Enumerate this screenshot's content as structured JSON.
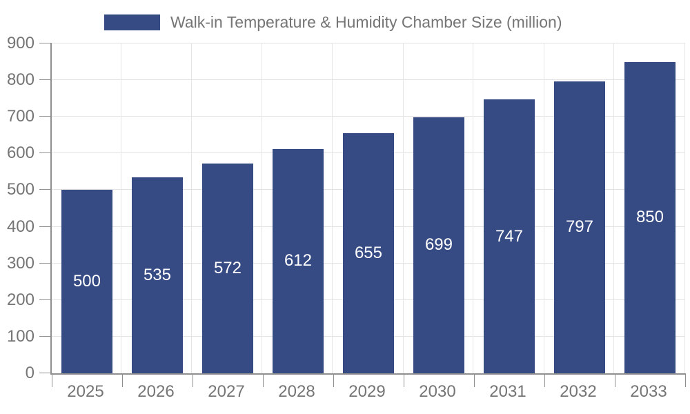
{
  "legend": {
    "swatch_color": "#364a84"
  },
  "chart_data": {
    "type": "bar",
    "title": "Walk-in Temperature & Humidity Chamber Size (million)",
    "categories": [
      "2025",
      "2026",
      "2027",
      "2028",
      "2029",
      "2030",
      "2031",
      "2032",
      "2033"
    ],
    "values": [
      500,
      535,
      572,
      612,
      655,
      699,
      747,
      797,
      850
    ],
    "xlabel": "",
    "ylabel": "",
    "ylim": [
      0,
      900
    ],
    "ytick_step": 100,
    "grid": true,
    "legend_position": "top-left",
    "colors": {
      "bar": "#364a84",
      "bar_label": "#ffffff",
      "axis_line": "#8f8f8f",
      "axis_text": "#757575",
      "gridline": "#e2e2e2"
    }
  }
}
